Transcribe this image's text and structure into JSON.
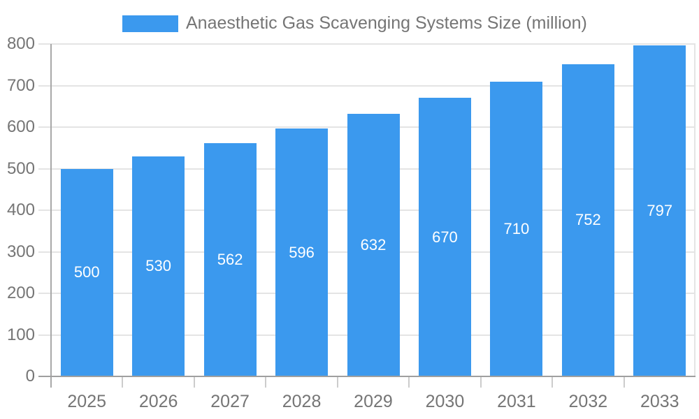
{
  "chart_data": {
    "type": "bar",
    "title": "Anaesthetic Gas Scavenging Systems Size (million)",
    "categories": [
      "2025",
      "2026",
      "2027",
      "2028",
      "2029",
      "2030",
      "2031",
      "2032",
      "2033"
    ],
    "values": [
      500,
      530,
      562,
      596,
      632,
      670,
      710,
      752,
      797
    ],
    "xlabel": "",
    "ylabel": "",
    "ylim": [
      0,
      800
    ],
    "ytick_step": 100,
    "ytick_labels": [
      "0",
      "100",
      "200",
      "300",
      "400",
      "500",
      "600",
      "700",
      "800"
    ],
    "grid": true,
    "legend_position": "top",
    "bar_labels_inside": true
  },
  "legend": {
    "label": "Anaesthetic Gas Scavenging Systems Size (million)"
  },
  "colors": {
    "bar": "#3b99ee",
    "bar_value_text": "#ffffff",
    "axis_text": "#757575",
    "gridline": "#e4e4e4",
    "yaxis_line": "#a8a8a8",
    "baseline": "#9f9f9f",
    "category_tick": "#cccccc",
    "background": "#ffffff"
  }
}
